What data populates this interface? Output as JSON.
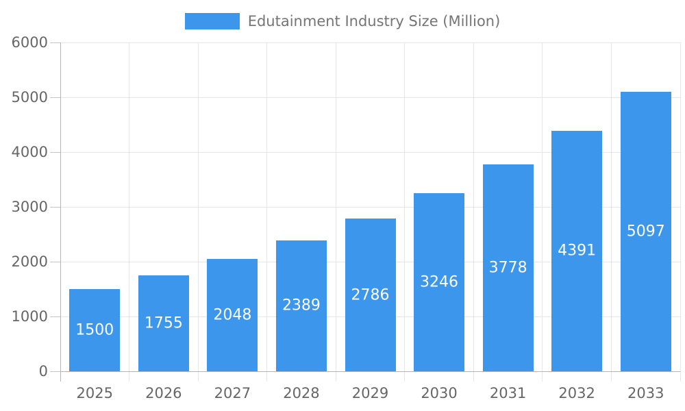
{
  "chart_data": {
    "type": "bar",
    "title": "Edutainment Industry Size (Million)",
    "categories": [
      "2025",
      "2026",
      "2027",
      "2028",
      "2029",
      "2030",
      "2031",
      "2032",
      "2033"
    ],
    "values": [
      1500,
      1755,
      2048,
      2389,
      2786,
      3246,
      3778,
      4391,
      5097
    ],
    "series": [
      {
        "name": "Edutainment Industry Size (Million)",
        "values": [
          1500,
          1755,
          2048,
          2389,
          2786,
          3246,
          3778,
          4391,
          5097
        ]
      }
    ],
    "xlabel": "",
    "ylabel": "",
    "ylim": [
      0,
      6000
    ],
    "y_ticks": [
      6000,
      5000,
      4000,
      3000,
      2000,
      1000,
      0
    ],
    "grid": "on",
    "legend_position": "top-center",
    "value_labels": "inside-center-white",
    "colors": {
      "bar": "#3b96ec",
      "grid_line": "#e6e6e6",
      "axis_line": "#b5b5b5",
      "tick_mark": "#c6c6c6",
      "tick_text": "#666666",
      "legend_text": "#757575",
      "value_label_text": "#ffffff"
    }
  }
}
